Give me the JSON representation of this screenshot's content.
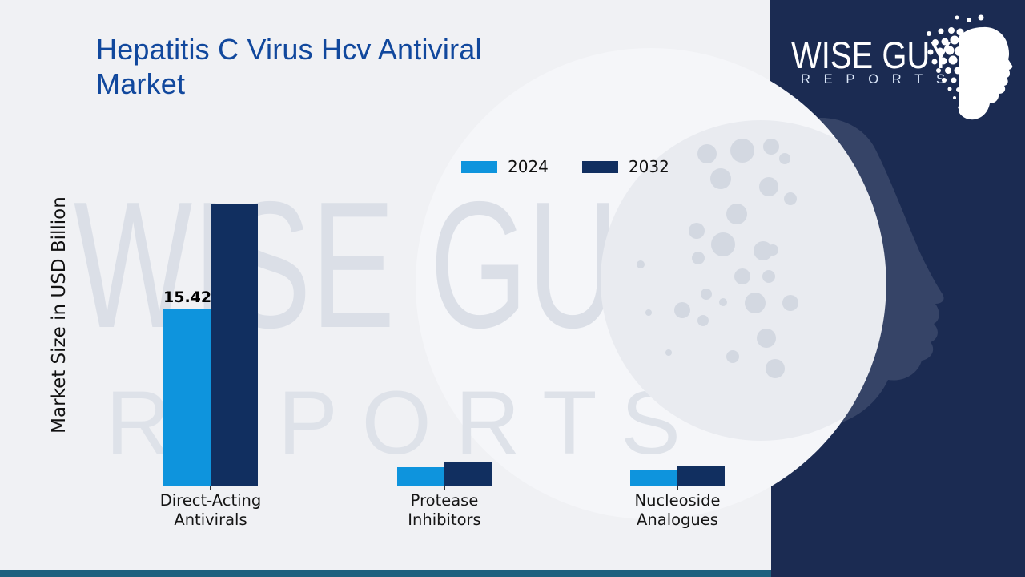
{
  "page": {
    "background_color": "#f0f1f4",
    "bottom_bar_color": "#1e607e"
  },
  "title": {
    "line1": "Hepatitis C Virus Hcv Antiviral",
    "line2": "Market",
    "color": "#11489d"
  },
  "chart_data": {
    "type": "bar",
    "title": "Hepatitis C Virus Hcv Antiviral Market",
    "xlabel": "",
    "ylabel": "Market Size in USD Billion",
    "categories": [
      "Direct-Acting Antivirals",
      "Protease Inhibitors",
      "Nucleoside Analogues"
    ],
    "category_lines": [
      [
        "Direct-Acting",
        "Antivirals"
      ],
      [
        "Protease",
        "Inhibitors"
      ],
      [
        "Nucleoside",
        "Analogues"
      ]
    ],
    "series": [
      {
        "name": "2024",
        "color": "#0e94dd",
        "values": [
          15.42,
          1.7,
          1.4
        ]
      },
      {
        "name": "2032",
        "color": "#112f60",
        "values": [
          24.45,
          2.1,
          1.8
        ]
      }
    ],
    "value_labels": [
      {
        "series_index": 0,
        "category_index": 0,
        "text": "15.42"
      }
    ],
    "ylim": [
      0,
      26
    ],
    "grid": false,
    "legend_position": "top-center"
  },
  "brand_logo": {
    "line1": "WISE GUY",
    "line2": "REPORTS",
    "bg_color": "#1b2b52"
  },
  "watermark": {
    "line1": "WISE GUY",
    "line2": "REPORTS"
  }
}
